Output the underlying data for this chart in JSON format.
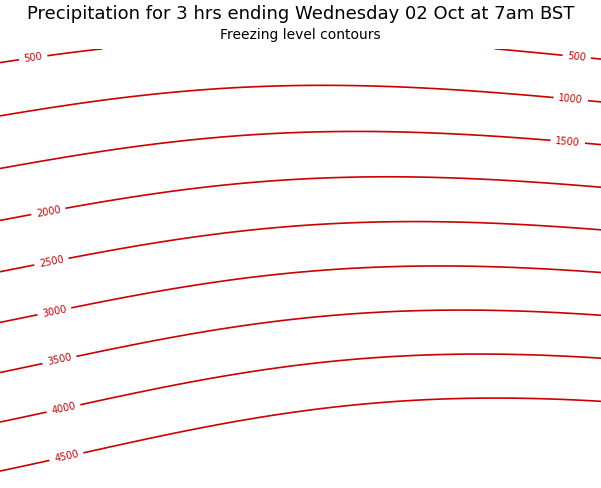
{
  "title": "Precipitation for 3 hrs ending Wednesday 02 Oct at 7am BST",
  "subtitle": "Freezing level contours",
  "title_fontsize": 13,
  "subtitle_fontsize": 10,
  "title_bg_color": "#f0f0f0",
  "map_ocean_color": "#d8e8f5",
  "map_land_color": "#b8b8b8",
  "contour_color": "#cc0000",
  "contour_label_color": "#cc0000",
  "contour_linewidth": 1.2,
  "lon_min": -25,
  "lon_max": 25,
  "lat_min": 36,
  "lat_max": 65,
  "contour_levels": [
    500,
    1000,
    1500,
    2000,
    2500,
    3000,
    3500,
    4000,
    4500
  ],
  "precip_color": "#c8d8f0",
  "fig_width": 6.01,
  "fig_height": 4.88,
  "dpi": 100
}
